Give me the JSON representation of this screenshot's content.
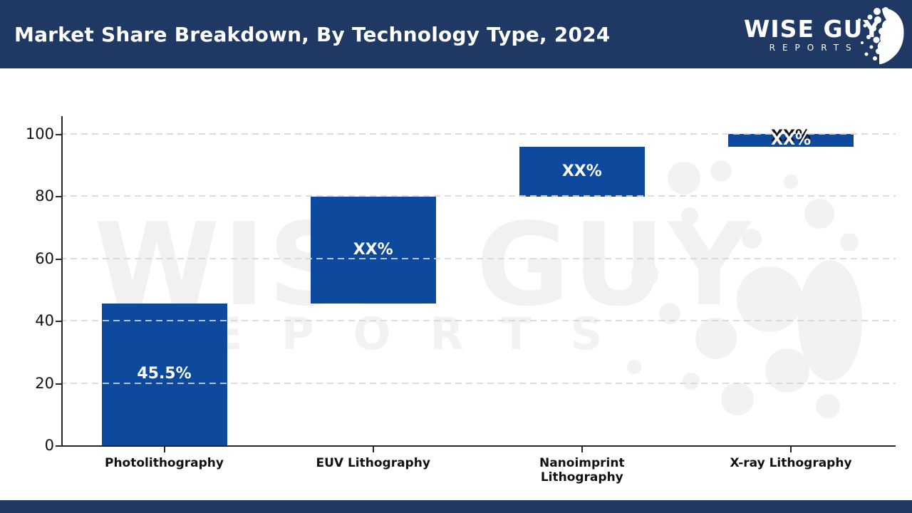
{
  "header": {
    "title": "Market Share Breakdown, By Technology Type, 2024",
    "logo": {
      "line1": "WISE GUY",
      "line2": "REPORTS"
    }
  },
  "watermark": {
    "line1": "WISE GUY",
    "line2": "REPORTS"
  },
  "chart_data": {
    "type": "bar",
    "subtype": "waterfall",
    "title": "Market Share Breakdown, By Technology Type, 2024",
    "categories": [
      "Photolithography",
      "EUV Lithography",
      "Nanoimprint\nLithography",
      "X-ray Lithography"
    ],
    "bars": [
      {
        "category": "Photolithography",
        "start": 0,
        "end": 45.5,
        "label": "45.5%"
      },
      {
        "category": "EUV Lithography",
        "start": 45.5,
        "end": 79.8,
        "label": "XX%"
      },
      {
        "category": "Nanoimprint Lithography",
        "start": 79.8,
        "end": 95.8,
        "label": "XX%"
      },
      {
        "category": "X-ray Lithography",
        "start": 95.8,
        "end": 100,
        "label": "XX%"
      }
    ],
    "yticks": [
      0,
      20,
      40,
      60,
      80,
      100
    ],
    "ylim": [
      0,
      105
    ],
    "xlabel": "",
    "ylabel": "",
    "grid": "horizontal-dashed",
    "legend": "none",
    "bar_color": "#0D4A9E",
    "bar_label_color": "#FFFFFF"
  },
  "colors": {
    "header_bg": "#1F3864",
    "footer_bg": "#1F3864",
    "bar": "#0D4A9E",
    "grid": "#D6D6D6",
    "axis": "#262626",
    "watermark": "#F1F1F1"
  }
}
